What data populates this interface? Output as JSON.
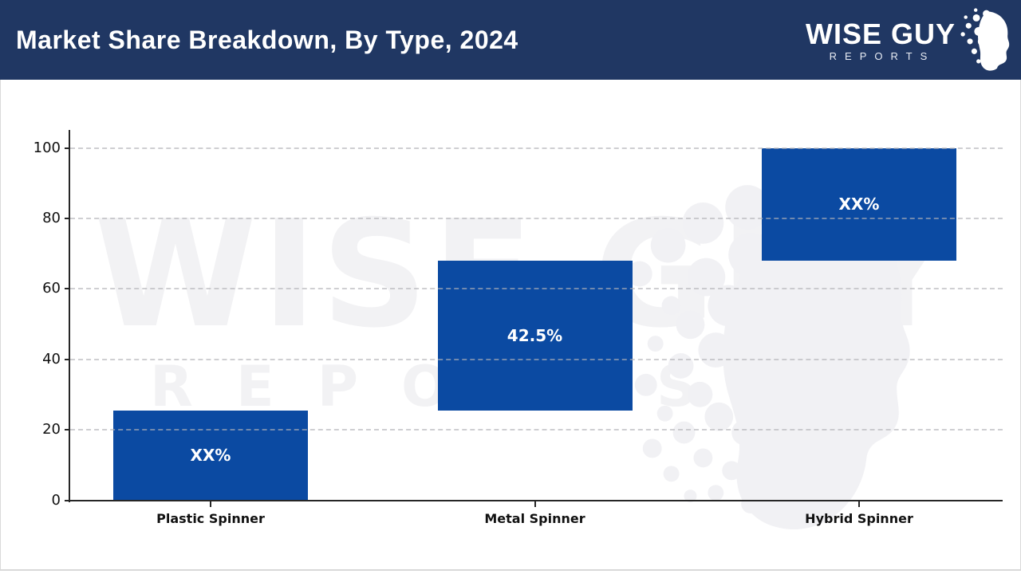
{
  "header": {
    "title": "Market Share Breakdown, By Type, 2024",
    "background_color": "#203763",
    "logo": {
      "line1": "WISE GUY",
      "line2": "REPORTS"
    }
  },
  "watermark": {
    "line1": "WISE GUY",
    "line2": "REPORTS"
  },
  "chart_data": {
    "type": "bar",
    "variant": "waterfall",
    "title": "Market Share Breakdown, By Type, 2024",
    "categories": [
      "Plastic Spinner",
      "Metal Spinner",
      "Hybrid Spinner"
    ],
    "series": [
      {
        "name": "Market share (%)",
        "segments": [
          {
            "category": "Plastic Spinner",
            "start": 0,
            "end": 25.5,
            "label": "XX%"
          },
          {
            "category": "Metal Spinner",
            "start": 25.5,
            "end": 68,
            "label": "42.5%"
          },
          {
            "category": "Hybrid Spinner",
            "start": 68,
            "end": 100,
            "label": "XX%"
          }
        ]
      }
    ],
    "yticks": [
      0,
      20,
      40,
      60,
      80,
      100
    ],
    "ylim": [
      0,
      100
    ],
    "xlabel": "",
    "ylabel": "",
    "grid": "horizontal-dashed",
    "legend": "none",
    "bar_color": "#0b4aa2",
    "bar_label_color": "#ffffff",
    "axis_color": "#262626"
  }
}
